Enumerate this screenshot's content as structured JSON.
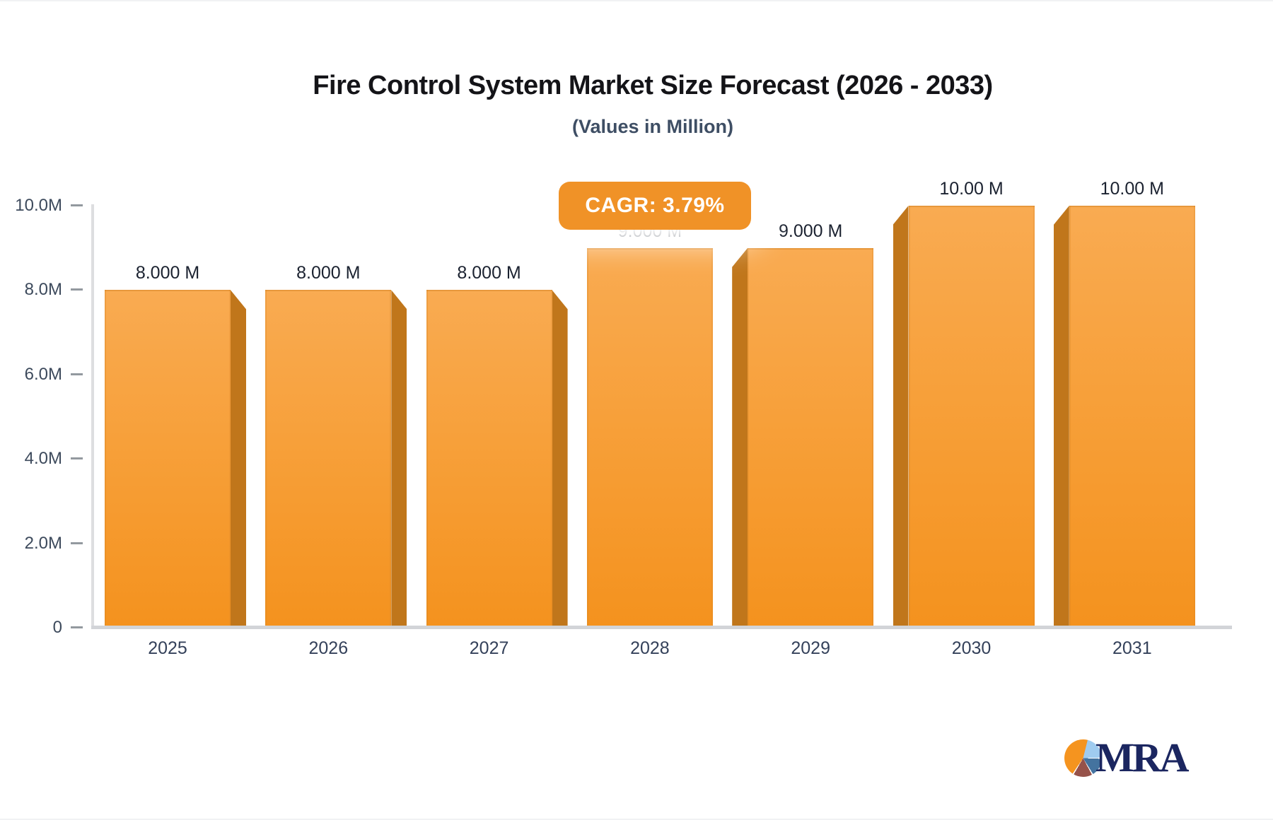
{
  "header": {
    "title": "Fire Control System Market Size Forecast (2026 - 2033)",
    "subtitle": "(Values in Million)"
  },
  "badge": {
    "label": "CAGR: 3.79%",
    "color": "#F09227",
    "text_color": "#FFFFFF"
  },
  "chart_data": {
    "type": "bar",
    "title": "Fire Control System Market Size Forecast (2026 - 2033)",
    "subtitle": "(Values in Million)",
    "annotation": "CAGR: 3.79%",
    "categories": [
      "2025",
      "2026",
      "2027",
      "2028",
      "2029",
      "2030",
      "2031"
    ],
    "values": [
      8.0,
      8.0,
      8.0,
      9.0,
      9.0,
      10.0,
      10.0
    ],
    "value_labels": [
      "8.000 M",
      "8.000 M",
      "8.000 M",
      "9.000 M",
      "9.000 M",
      "10.00 M",
      "10.00 M"
    ],
    "unit": "Million",
    "xlabel": "",
    "ylabel": "",
    "ylim": [
      0,
      10
    ],
    "y_ticks": [
      {
        "value": 0,
        "label": "0"
      },
      {
        "value": 2,
        "label": "2.0M"
      },
      {
        "value": 4,
        "label": "4.0M"
      },
      {
        "value": 6,
        "label": "6.0M"
      },
      {
        "value": 8,
        "label": "8.0M"
      },
      {
        "value": 10,
        "label": "10.0M"
      }
    ],
    "grid": false,
    "legend": false,
    "bar_color": "#F4921E",
    "bar_color_light": "#F9AB52",
    "bar_side_color": "#C0761B",
    "axis_color": "#D2D4D8",
    "label_color": "#3D4A5C"
  },
  "branding": {
    "logo_text": "MRA"
  }
}
